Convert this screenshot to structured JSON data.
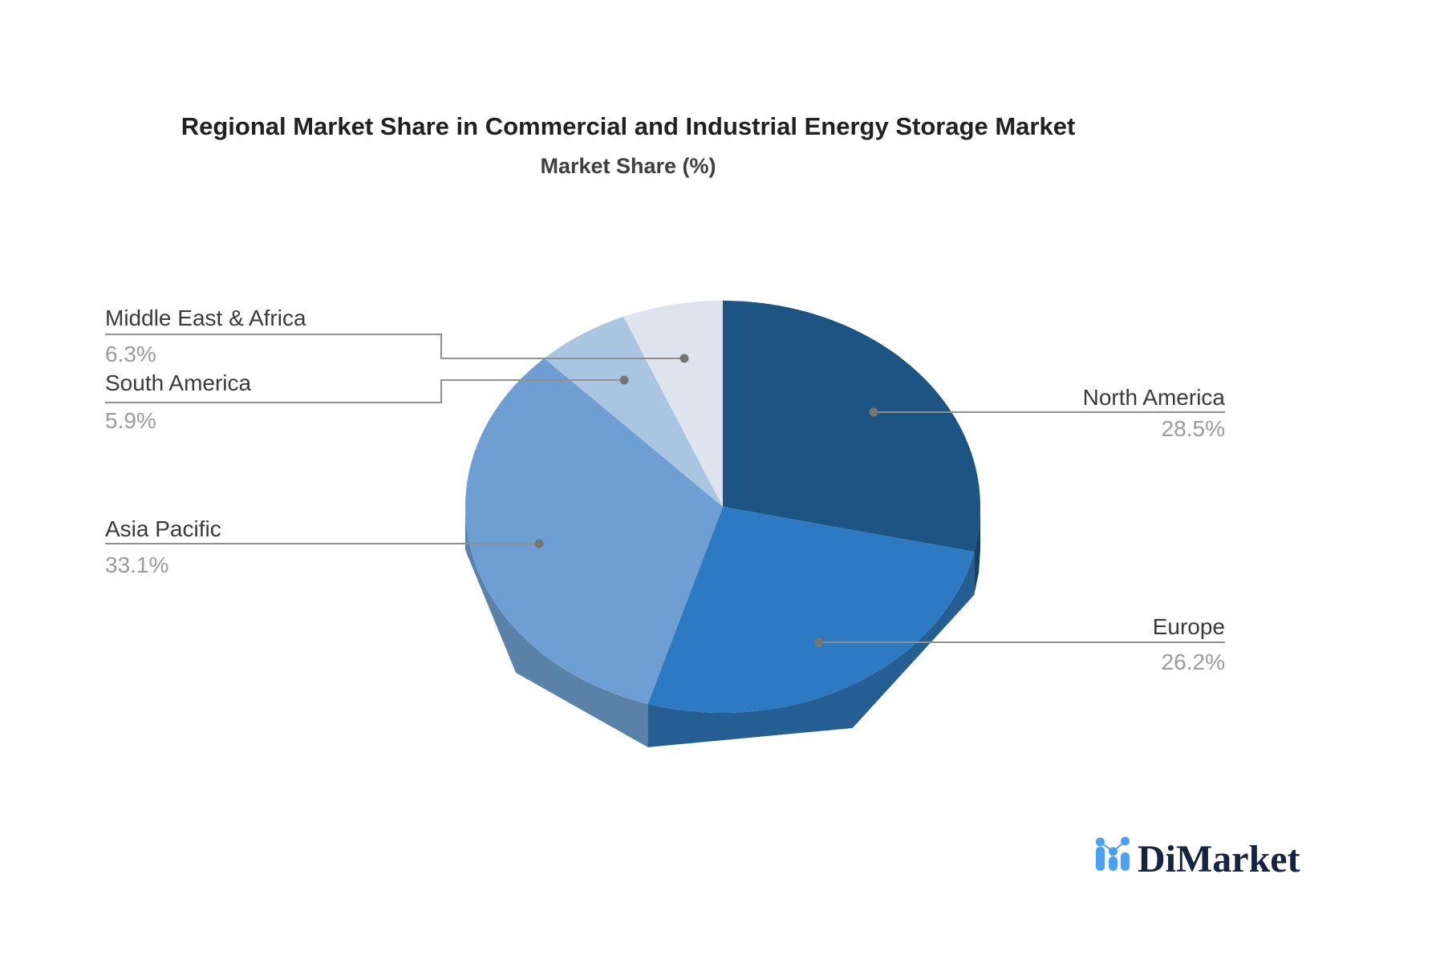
{
  "title": "Regional Market Share in Commercial and Industrial Energy Storage Market",
  "subtitle": "Market Share (%)",
  "brand": {
    "name": "DiMarket",
    "icon": "bar-chart-logo-icon",
    "icon_color": "#4aa0f5",
    "text_color": "#15243f"
  },
  "chart_data": {
    "type": "pie",
    "style": "3d",
    "title": "Regional Market Share in Commercial and Industrial Energy Storage Market",
    "subtitle": "Market Share (%)",
    "unit": "%",
    "direction": "clockwise",
    "start_angle_deg": 0,
    "legend_position": "callout-labels",
    "label_text_color": "#3a3a3a",
    "value_text_color": "#9b9b9b",
    "leader_color": "#8f8f8f",
    "slices": [
      {
        "name": "North America",
        "value": 28.5,
        "value_text": "28.5%",
        "color": "#1c5483",
        "side_color": "#164166"
      },
      {
        "name": "Europe",
        "value": 26.2,
        "value_text": "26.2%",
        "color": "#2e7ac2",
        "side_color": "#245e92"
      },
      {
        "name": "Asia Pacific",
        "value": 33.1,
        "value_text": "33.1%",
        "color": "#6f9fd2",
        "side_color": "#5a81a8"
      },
      {
        "name": "South America",
        "value": 5.9,
        "value_text": "5.9%",
        "color": "#aac5e2",
        "side_color": "#8aa6c2"
      },
      {
        "name": "Middle East & Africa",
        "value": 6.3,
        "value_text": "6.3%",
        "color": "#dde4ee",
        "side_color": "#b6bfcb"
      }
    ]
  }
}
